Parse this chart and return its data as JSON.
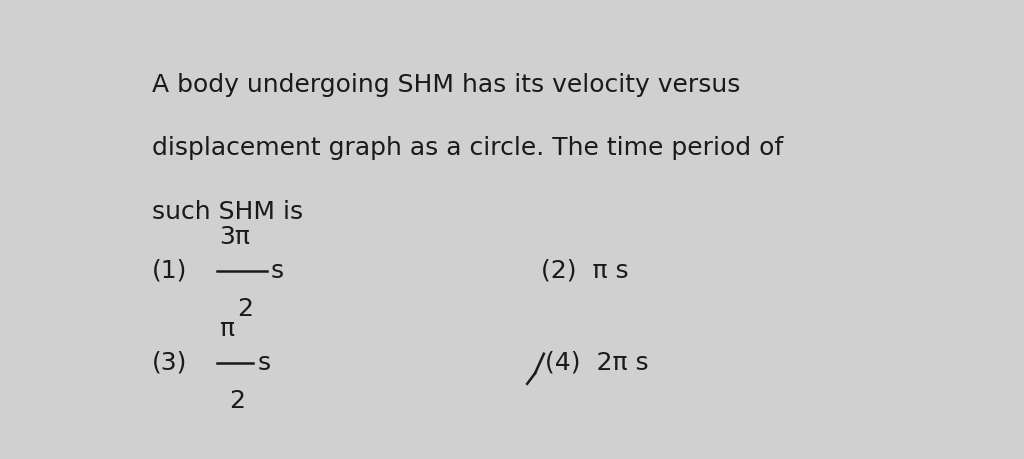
{
  "background_color": "#d0d0d0",
  "text_color": "#1a1a1a",
  "paragraph_line1": "A body undergoing SHM has its velocity versus",
  "paragraph_line2": "displacement graph as a circle. The time period of",
  "paragraph_line3": "such SHM is",
  "option1_prefix": "(1)",
  "option1_numerator": "3π",
  "option1_denominator": "2",
  "option1_suffix": "s",
  "option2": "(2)  π s",
  "option3_prefix": "(3)",
  "option3_numerator": "π",
  "option3_denominator": "2",
  "option3_suffix": "s",
  "option4": "(4)  2π s",
  "figsize": [
    10.24,
    4.59
  ],
  "dpi": 100
}
